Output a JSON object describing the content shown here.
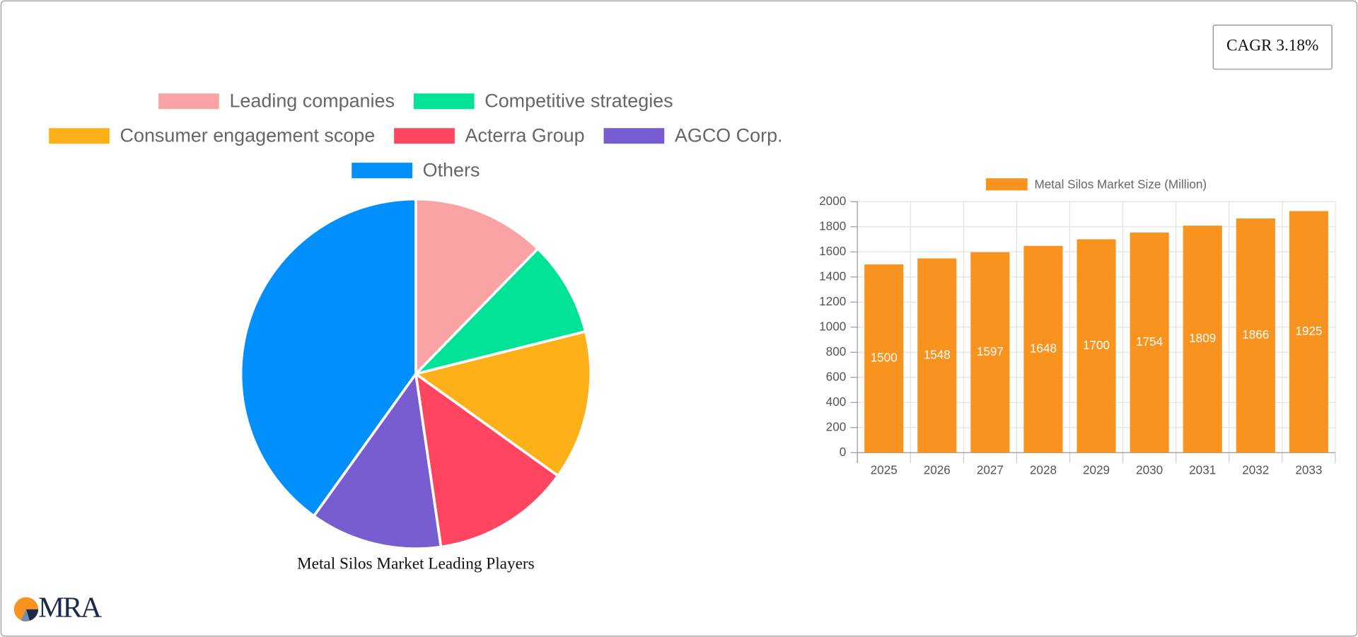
{
  "cagr_label": "CAGR 3.18%",
  "logo": "MRA",
  "chart_data": [
    {
      "type": "pie",
      "title": "Metal Silos Market Leading Players",
      "categories": [
        "Leading companies",
        "Competitive strategies",
        "Consumer engagement scope",
        "Acterra Group",
        "AGCO Corp.",
        "Others"
      ],
      "values": [
        12.3,
        8.8,
        13.8,
        12.8,
        12.2,
        40.1
      ],
      "colors": [
        "#f9a3a4",
        "#00e396",
        "#feb019",
        "#ff4560",
        "#775dd0",
        "#008ffb"
      ],
      "legend": "top"
    },
    {
      "type": "bar",
      "categories": [
        "2025",
        "2026",
        "2027",
        "2028",
        "2029",
        "2030",
        "2031",
        "2032",
        "2033"
      ],
      "series": [
        {
          "name": "Metal Silos Market Size (Million)",
          "color": "#f7931e",
          "values": [
            1500,
            1548,
            1597,
            1648,
            1700,
            1754,
            1809,
            1866,
            1925
          ]
        }
      ],
      "ylim": [
        0,
        2000
      ],
      "yticks": [
        0,
        200,
        400,
        600,
        800,
        1000,
        1200,
        1400,
        1600,
        1800,
        2000
      ],
      "grid": true,
      "legend": "top"
    }
  ]
}
